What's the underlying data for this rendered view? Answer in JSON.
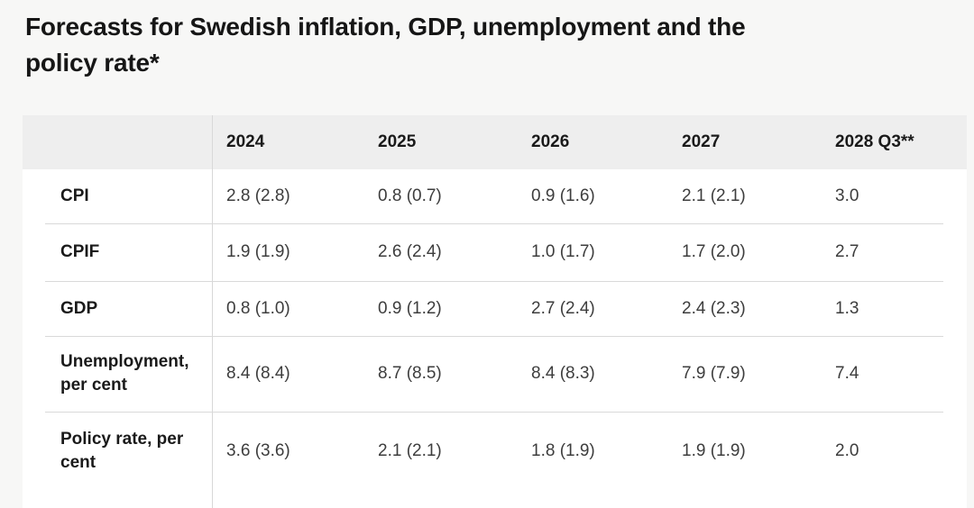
{
  "page": {
    "background": "#f7f7f6",
    "title": {
      "line1": "Forecasts for Swedish inflation, GDP, unemployment and the",
      "line2": "policy rate*",
      "full": "Forecasts for Swedish inflation, GDP, unemployment and the policy rate*"
    }
  },
  "colors": {
    "header_background": "#eeeeee",
    "table_background": "#ffffff",
    "divider": "#d9d9d9",
    "heading_text": "#1a1a1a",
    "value_text": "#3d3d3d"
  },
  "table": {
    "columns": [
      "",
      "2024",
      "2025",
      "2026",
      "2027",
      "2028 Q3**"
    ],
    "rows": [
      {
        "label": "CPI",
        "values": [
          "2.8 (2.8)",
          "0.8 (0.7)",
          "0.9 (1.6)",
          "2.1 (2.1)",
          "3.0"
        ]
      },
      {
        "label": "CPIF",
        "values": [
          "1.9 (1.9)",
          "2.6 (2.4)",
          "1.0 (1.7)",
          "1.7 (2.0)",
          "2.7"
        ]
      },
      {
        "label": "GDP",
        "values": [
          "0.8 (1.0)",
          "0.9 (1.2)",
          "2.7 (2.4)",
          "2.4 (2.3)",
          "1.3"
        ]
      },
      {
        "label": "Unemployment, per cent",
        "values": [
          "8.4 (8.4)",
          "8.7 (8.5)",
          "8.4 (8.3)",
          "7.9 (7.9)",
          "7.4"
        ]
      },
      {
        "label": "Policy rate, per cent",
        "values": [
          "3.6 (3.6)",
          "2.1 (2.1)",
          "1.8 (1.9)",
          "1.9 (1.9)",
          "2.0"
        ]
      }
    ]
  },
  "chart_data": {
    "type": "table",
    "title": "Forecasts for Swedish inflation, GDP, unemployment and the policy rate*",
    "categories": [
      "2024",
      "2025",
      "2026",
      "2027",
      "2028 Q3**"
    ],
    "series": [
      {
        "name": "CPI",
        "values": [
          2.8,
          0.8,
          0.9,
          2.1,
          3.0
        ],
        "previous_forecast": [
          2.8,
          0.7,
          1.6,
          2.1,
          null
        ]
      },
      {
        "name": "CPIF",
        "values": [
          1.9,
          2.6,
          1.0,
          1.7,
          2.7
        ],
        "previous_forecast": [
          1.9,
          2.4,
          1.7,
          2.0,
          null
        ]
      },
      {
        "name": "GDP",
        "values": [
          0.8,
          0.9,
          2.7,
          2.4,
          1.3
        ],
        "previous_forecast": [
          1.0,
          1.2,
          2.4,
          2.3,
          null
        ]
      },
      {
        "name": "Unemployment, per cent",
        "values": [
          8.4,
          8.7,
          8.4,
          7.9,
          7.4
        ],
        "previous_forecast": [
          8.4,
          8.5,
          8.3,
          7.9,
          null
        ]
      },
      {
        "name": "Policy rate, per cent",
        "values": [
          3.6,
          2.1,
          1.8,
          1.9,
          2.0
        ],
        "previous_forecast": [
          3.6,
          2.1,
          1.9,
          1.9,
          null
        ]
      }
    ],
    "layout": "values shown as 'current (previous)' pairs per cell; single value in last column"
  }
}
